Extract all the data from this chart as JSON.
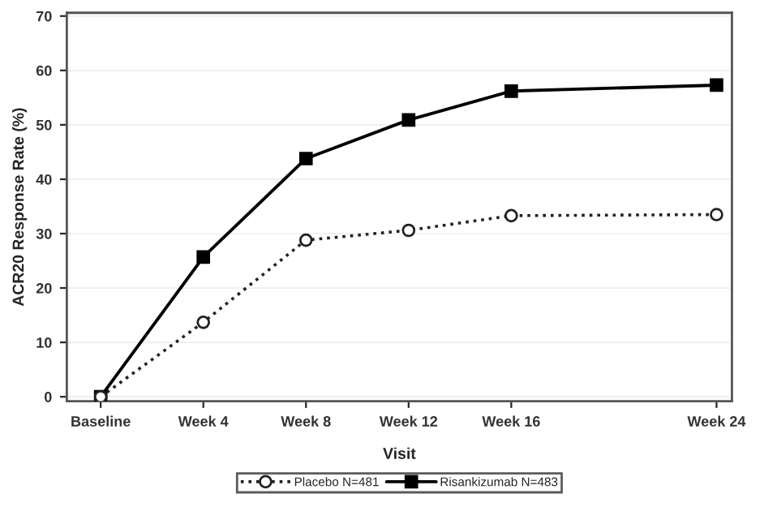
{
  "chart_data": {
    "type": "line",
    "xlabel": "Visit",
    "ylabel": "ACR20 Response Rate (%)",
    "categories": [
      "Baseline",
      "Week 4",
      "Week 8",
      "Week 12",
      "Week 16",
      null,
      "Week 24"
    ],
    "series": [
      {
        "name": "Placebo N=481",
        "color": "#222222",
        "values": [
          0,
          13.7,
          28.8,
          30.6,
          33.3,
          null,
          33.5
        ],
        "marker": "circle",
        "line_style": "dotted"
      },
      {
        "name": "Risankizumab N=483",
        "color": "#000000",
        "values": [
          0,
          25.7,
          43.8,
          50.9,
          56.2,
          null,
          57.3
        ],
        "marker": "square",
        "line_style": "solid"
      }
    ],
    "ylim": [
      -0.8,
      70.6
    ],
    "yticks": [
      0,
      10,
      20,
      30,
      40,
      50,
      60,
      70
    ],
    "grid": "y",
    "legend": "bottom"
  }
}
